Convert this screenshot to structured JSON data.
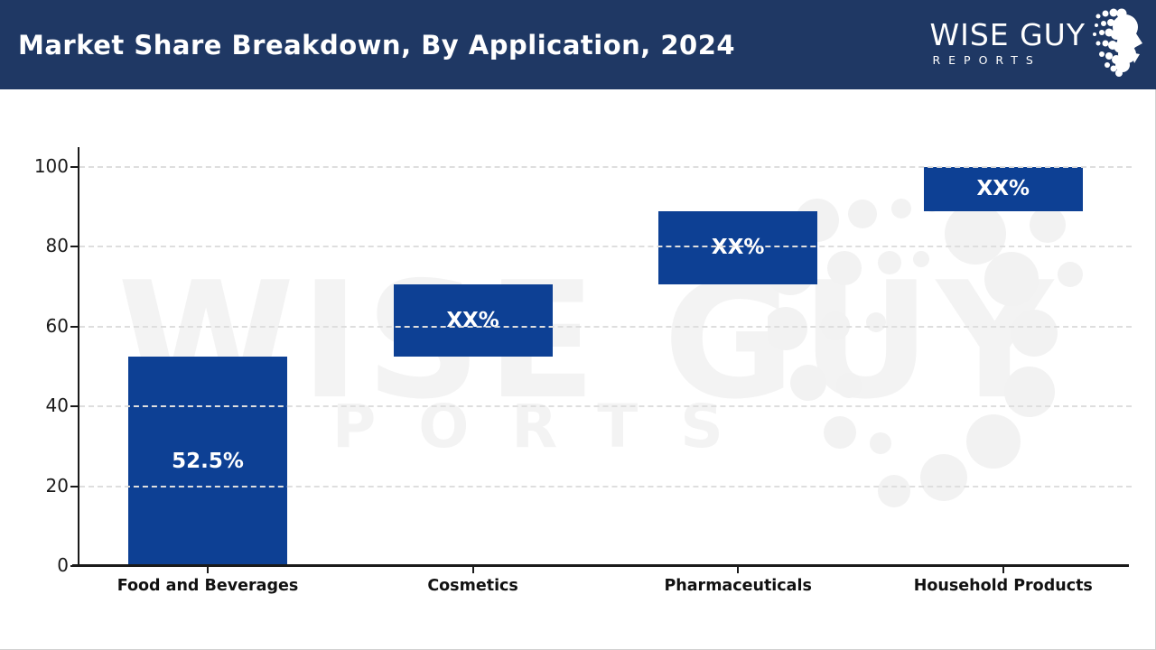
{
  "header": {
    "title": "Market Share Breakdown, By Application, 2024",
    "logo": {
      "line1": "WISE GUY",
      "line2": "REPORTS",
      "face_icon": "dotted-head-profile"
    }
  },
  "watermark": {
    "line1": "WISE GUY",
    "line2": "REPORTS"
  },
  "colors": {
    "header_bg": "#1f3864",
    "bar": "#0d4094",
    "grid": "#dedede",
    "axis": "#1a1a1a",
    "bar_label": "#ffffff",
    "watermark": "#f3f3f3"
  },
  "chart_data": {
    "type": "bar",
    "subtype": "stacked-waterfall",
    "title": "Market Share Breakdown, By Application, 2024",
    "categories": [
      "Food and Beverages",
      "Cosmetics",
      "Pharmaceuticals",
      "Household Products"
    ],
    "bars": [
      {
        "category": "Food and Beverages",
        "start": 0,
        "end": 52.5,
        "label": "52.5%"
      },
      {
        "category": "Cosmetics",
        "start": 52.5,
        "end": 70.5,
        "label": "XX%"
      },
      {
        "category": "Pharmaceuticals",
        "start": 70.5,
        "end": 89,
        "label": "XX%"
      },
      {
        "category": "Household Products",
        "start": 89,
        "end": 100,
        "label": "XX%"
      }
    ],
    "xlabel": "",
    "ylabel": "",
    "yticks": [
      0,
      20,
      40,
      60,
      80,
      100
    ],
    "ylim": [
      0,
      105
    ],
    "grid": "horizontal-dashed",
    "legend": "none"
  }
}
